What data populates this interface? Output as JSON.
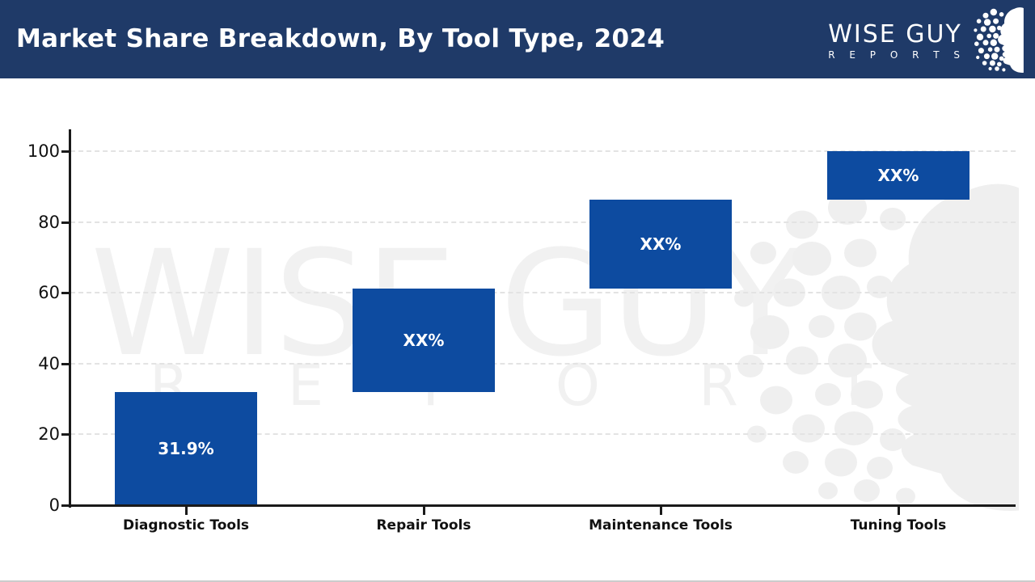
{
  "header": {
    "title": "Market Share Breakdown, By Tool Type, 2024",
    "logo_line1": "WISE GUY",
    "logo_line2": "R E P O R T S"
  },
  "watermark": {
    "line1": "WISE GUY",
    "line2": "R E P O R T S",
    "face_icon": "dotted-head-profile"
  },
  "colors": {
    "header_bg": "#1F3A68",
    "bar": "#0D4BA0",
    "axis": "#1a1a1a",
    "grid": "#E3E3E3",
    "watermark": "#F1F1F1",
    "bar_label_text": "#FFFFFF",
    "bottom_rule": "#CCCCCC"
  },
  "chart_data": {
    "type": "waterfall-bar",
    "title": "Market Share Breakdown, By Tool Type, 2024",
    "categories": [
      "Diagnostic Tools",
      "Repair Tools",
      "Maintenance Tools",
      "Tuning Tools"
    ],
    "bars": [
      {
        "category": "Diagnostic Tools",
        "label": "31.9%",
        "start": 0,
        "end": 31.9
      },
      {
        "category": "Repair Tools",
        "label": "XX%",
        "start": 31.9,
        "end": 61.2
      },
      {
        "category": "Maintenance Tools",
        "label": "XX%",
        "start": 61.2,
        "end": 86.4
      },
      {
        "category": "Tuning Tools",
        "label": "XX%",
        "start": 86.4,
        "end": 100
      }
    ],
    "yticks": [
      0,
      20,
      40,
      60,
      80,
      100
    ],
    "ylim": [
      0,
      106
    ],
    "xlabel": "",
    "ylabel": "",
    "grid": "horizontal-dashed",
    "legend": "none",
    "bar_color": "#0D4BA0"
  }
}
